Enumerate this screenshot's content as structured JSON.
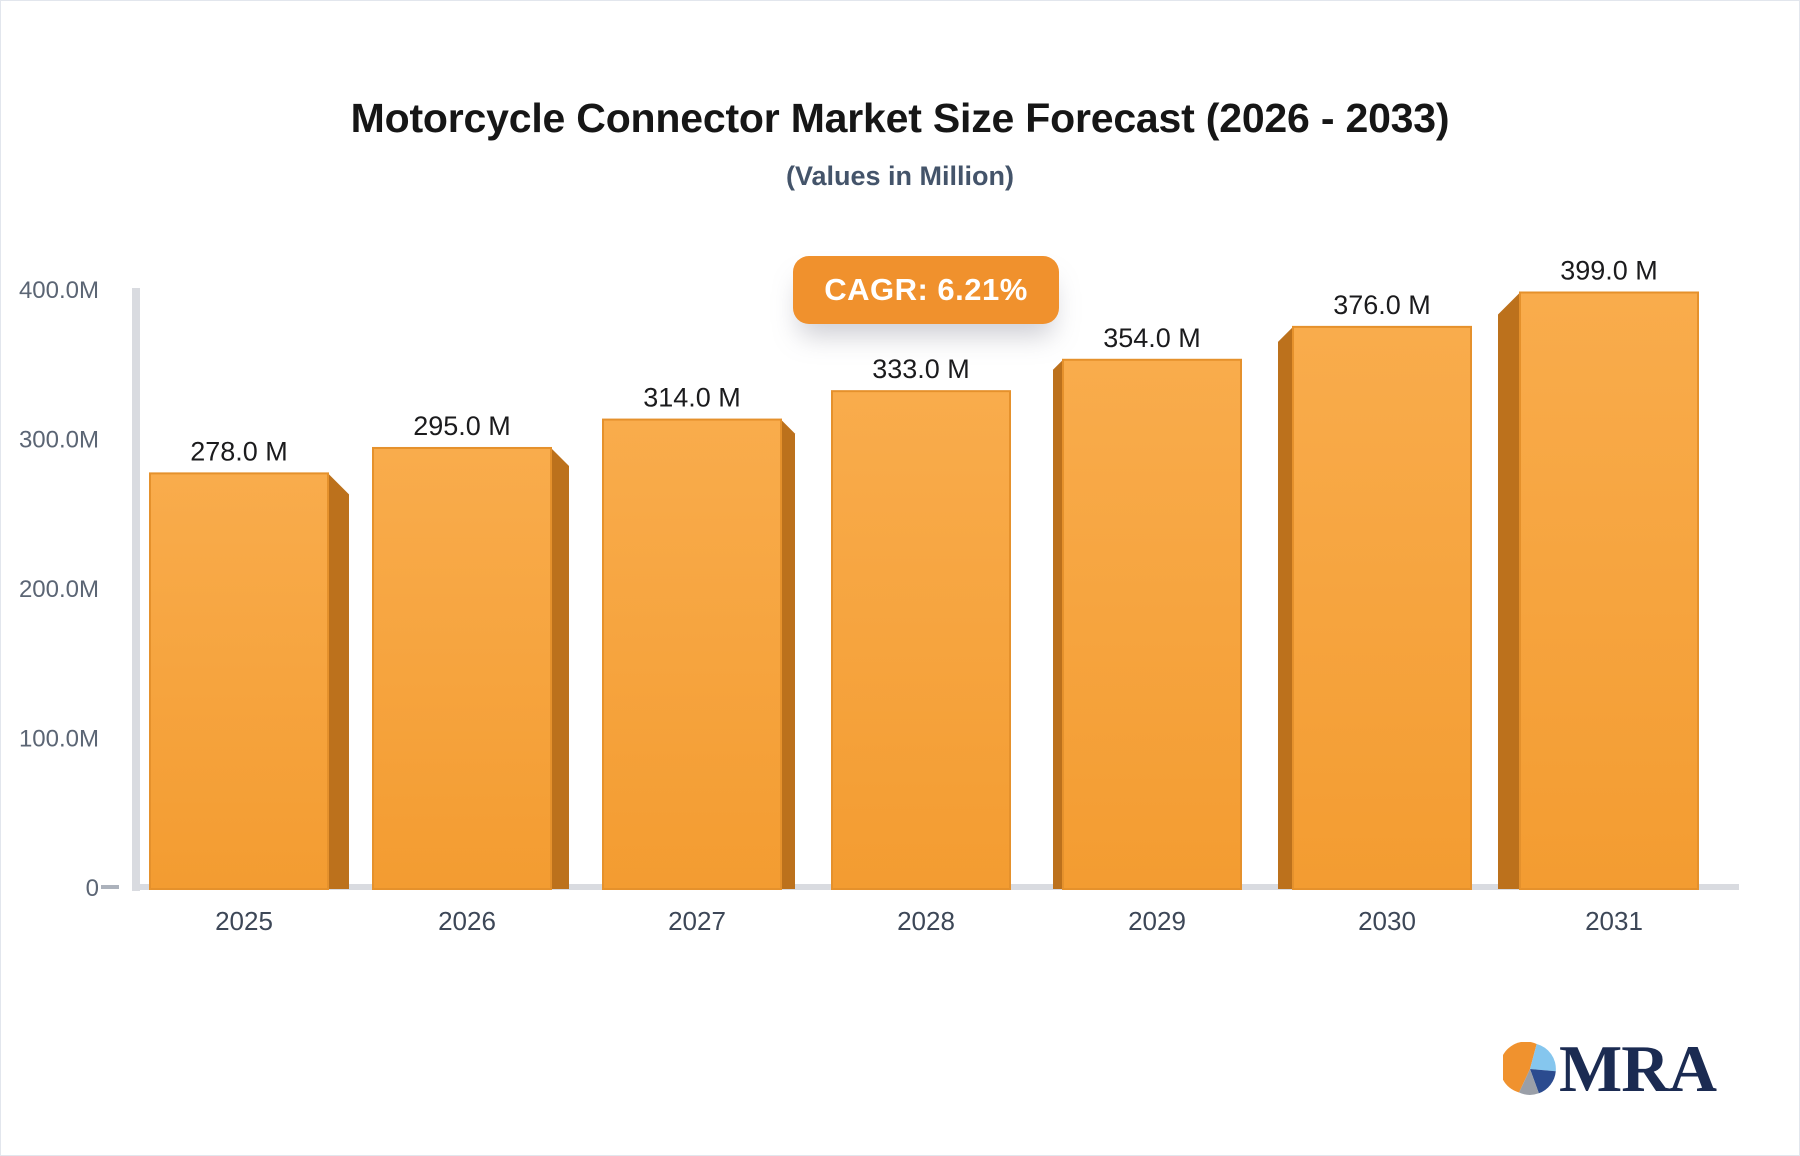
{
  "header": {
    "title": "Motorcycle Connector Market Size Forecast (2026 - 2033)",
    "subtitle": "(Values in Million)"
  },
  "badge": {
    "label": "CAGR: 6.21%"
  },
  "chart_data": {
    "type": "bar",
    "title": "Motorcycle Connector Market Size Forecast (2026 - 2033)",
    "subtitle": "(Values in Million)",
    "unit": "Million",
    "cagr_label": "CAGR: 6.21%",
    "categories": [
      "2025",
      "2026",
      "2027",
      "2028",
      "2029",
      "2030",
      "2031"
    ],
    "values": [
      278,
      295,
      314,
      333,
      354,
      376,
      399
    ],
    "value_labels": [
      "278.0 M",
      "295.0 M",
      "314.0 M",
      "333.0 M",
      "354.0 M",
      "376.0 M",
      "399.0 M"
    ],
    "y_tick_labels": [
      "400.0M",
      "300.0M",
      "200.0M",
      "100.0M",
      "0"
    ],
    "y_tick_values": [
      400,
      300,
      200,
      100,
      0
    ],
    "ylim": [
      0,
      400
    ],
    "grid": false,
    "legend": "none",
    "colors": {
      "bar_top_gradient": "#F9AC4C",
      "bar_bottom_gradient": "#F39C31",
      "bar_edge": "#E5912C",
      "bar_side": "#BC711C",
      "badge": "#F0912D",
      "axis_line": "#D9DBE0",
      "zero_tick": "#ACB2BC",
      "y_label": "#5B6574",
      "x_label": "#3D4757",
      "value_label": "#1B1B1D"
    }
  },
  "logo": {
    "text": "MRA",
    "text_color": "#1B2B52",
    "pie_colors": [
      "#F0922E",
      "#85C6EE",
      "#2B4B8F",
      "#9A9FA8"
    ]
  }
}
